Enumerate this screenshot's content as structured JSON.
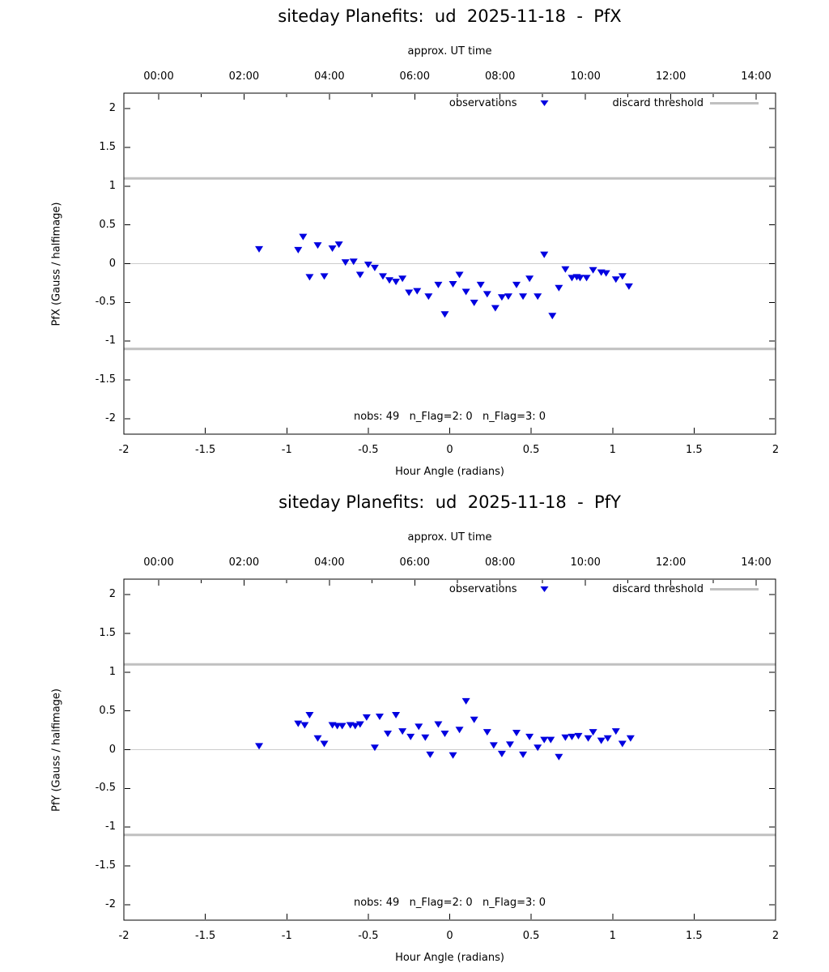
{
  "colors": {
    "marker_blue": "#0000e0",
    "threshold_gray": "#c0c0c0",
    "zero_gray": "#cccccc",
    "axis_black": "#000000",
    "background": "#ffffff"
  },
  "chart_data": [
    {
      "type": "scatter",
      "title": "siteday Planefits:  ud  2025-11-18  -  PfX",
      "x2_axis": {
        "label": "approx. UT time",
        "tick_labels": [
          "00:00",
          "02:00",
          "04:00",
          "06:00",
          "08:00",
          "10:00",
          "12:00",
          "14:00"
        ],
        "tick_ha": [
          -1.7864,
          -1.2626,
          -0.7384,
          -0.2147,
          0.3091,
          0.8333,
          1.357,
          1.8808
        ],
        "minor_step_ha": 0.2618
      },
      "x_axis": {
        "label": "Hour Angle (radians)",
        "range": [
          -2,
          2
        ],
        "ticks": [
          -2,
          -1.5,
          -1,
          -0.5,
          0,
          0.5,
          1,
          1.5,
          2
        ],
        "tick_labels": [
          "-2",
          "-1.5",
          "-1",
          "-0.5",
          "0",
          "0.5",
          "1",
          "1.5",
          "2"
        ]
      },
      "y_axis": {
        "label": "PfX (Gauss / halfimage)",
        "range": [
          -2.2,
          2.2
        ],
        "ticks": [
          -2,
          -1.5,
          -1,
          -0.5,
          0,
          0.5,
          1,
          1.5,
          2
        ],
        "tick_labels": [
          "-2",
          "-1.5",
          "-1",
          "-0.5",
          "0",
          "0.5",
          "1",
          "1.5",
          "2"
        ]
      },
      "legend": {
        "observations_label": "observations",
        "threshold_label": "discard threshold"
      },
      "stats_text": "nobs: 49   n_Flag=2: 0   n_Flag=3: 0",
      "discard_threshold_y": [
        1.1,
        -1.1
      ],
      "zero_line_y": 0,
      "series": [
        {
          "name": "observations",
          "marker": "triangle-down",
          "points": [
            [
              -1.17,
              0.19
            ],
            [
              -0.93,
              0.18
            ],
            [
              -0.9,
              0.35
            ],
            [
              -0.86,
              -0.17
            ],
            [
              -0.81,
              0.24
            ],
            [
              -0.77,
              -0.16
            ],
            [
              -0.72,
              0.2
            ],
            [
              -0.68,
              0.25
            ],
            [
              -0.64,
              0.02
            ],
            [
              -0.59,
              0.03
            ],
            [
              -0.55,
              -0.14
            ],
            [
              -0.5,
              -0.01
            ],
            [
              -0.46,
              -0.05
            ],
            [
              -0.41,
              -0.16
            ],
            [
              -0.37,
              -0.21
            ],
            [
              -0.33,
              -0.23
            ],
            [
              -0.29,
              -0.19
            ],
            [
              -0.25,
              -0.37
            ],
            [
              -0.2,
              -0.35
            ],
            [
              -0.13,
              -0.42
            ],
            [
              -0.07,
              -0.27
            ],
            [
              -0.03,
              -0.65
            ],
            [
              0.02,
              -0.26
            ],
            [
              0.06,
              -0.14
            ],
            [
              0.1,
              -0.36
            ],
            [
              0.15,
              -0.5
            ],
            [
              0.19,
              -0.27
            ],
            [
              0.23,
              -0.39
            ],
            [
              0.28,
              -0.57
            ],
            [
              0.32,
              -0.43
            ],
            [
              0.36,
              -0.42
            ],
            [
              0.41,
              -0.27
            ],
            [
              0.45,
              -0.42
            ],
            [
              0.49,
              -0.19
            ],
            [
              0.54,
              -0.42
            ],
            [
              0.58,
              0.12
            ],
            [
              0.63,
              -0.67
            ],
            [
              0.67,
              -0.31
            ],
            [
              0.71,
              -0.07
            ],
            [
              0.75,
              -0.18
            ],
            [
              0.78,
              -0.17
            ],
            [
              0.8,
              -0.18
            ],
            [
              0.84,
              -0.18
            ],
            [
              0.88,
              -0.08
            ],
            [
              0.93,
              -0.11
            ],
            [
              0.96,
              -0.12
            ],
            [
              1.02,
              -0.2
            ],
            [
              1.06,
              -0.16
            ],
            [
              1.1,
              -0.29
            ]
          ]
        }
      ]
    },
    {
      "type": "scatter",
      "title": "siteday Planefits:  ud  2025-11-18  -  PfY",
      "x2_axis": {
        "label": "approx. UT time",
        "tick_labels": [
          "00:00",
          "02:00",
          "04:00",
          "06:00",
          "08:00",
          "10:00",
          "12:00",
          "14:00"
        ],
        "tick_ha": [
          -1.7864,
          -1.2626,
          -0.7384,
          -0.2147,
          0.3091,
          0.8333,
          1.357,
          1.8808
        ],
        "minor_step_ha": 0.2618
      },
      "x_axis": {
        "label": "Hour Angle (radians)",
        "range": [
          -2,
          2
        ],
        "ticks": [
          -2,
          -1.5,
          -1,
          -0.5,
          0,
          0.5,
          1,
          1.5,
          2
        ],
        "tick_labels": [
          "-2",
          "-1.5",
          "-1",
          "-0.5",
          "0",
          "0.5",
          "1",
          "1.5",
          "2"
        ]
      },
      "y_axis": {
        "label": "PfY (Gauss / halfimage)",
        "range": [
          -2.2,
          2.2
        ],
        "ticks": [
          -2,
          -1.5,
          -1,
          -0.5,
          0,
          0.5,
          1,
          1.5,
          2
        ],
        "tick_labels": [
          "-2",
          "-1.5",
          "-1",
          "-0.5",
          "0",
          "0.5",
          "1",
          "1.5",
          "2"
        ]
      },
      "legend": {
        "observations_label": "observations",
        "threshold_label": "discard threshold"
      },
      "stats_text": "nobs: 49   n_Flag=2: 0   n_Flag=3: 0",
      "discard_threshold_y": [
        1.1,
        -1.1
      ],
      "zero_line_y": 0,
      "series": [
        {
          "name": "observations",
          "marker": "triangle-down",
          "points": [
            [
              -1.17,
              0.05
            ],
            [
              -0.93,
              0.34
            ],
            [
              -0.89,
              0.32
            ],
            [
              -0.86,
              0.45
            ],
            [
              -0.81,
              0.15
            ],
            [
              -0.77,
              0.08
            ],
            [
              -0.72,
              0.32
            ],
            [
              -0.69,
              0.31
            ],
            [
              -0.66,
              0.31
            ],
            [
              -0.61,
              0.32
            ],
            [
              -0.58,
              0.31
            ],
            [
              -0.55,
              0.33
            ],
            [
              -0.51,
              0.42
            ],
            [
              -0.46,
              0.03
            ],
            [
              -0.43,
              0.43
            ],
            [
              -0.38,
              0.21
            ],
            [
              -0.33,
              0.45
            ],
            [
              -0.29,
              0.24
            ],
            [
              -0.24,
              0.17
            ],
            [
              -0.19,
              0.3
            ],
            [
              -0.15,
              0.16
            ],
            [
              -0.12,
              -0.06
            ],
            [
              -0.07,
              0.33
            ],
            [
              -0.03,
              0.21
            ],
            [
              0.02,
              -0.07
            ],
            [
              0.06,
              0.26
            ],
            [
              0.1,
              0.63
            ],
            [
              0.15,
              0.39
            ],
            [
              0.23,
              0.23
            ],
            [
              0.27,
              0.06
            ],
            [
              0.32,
              -0.05
            ],
            [
              0.37,
              0.07
            ],
            [
              0.41,
              0.22
            ],
            [
              0.45,
              -0.06
            ],
            [
              0.49,
              0.17
            ],
            [
              0.54,
              0.03
            ],
            [
              0.58,
              0.13
            ],
            [
              0.62,
              0.13
            ],
            [
              0.67,
              -0.09
            ],
            [
              0.71,
              0.16
            ],
            [
              0.75,
              0.17
            ],
            [
              0.79,
              0.18
            ],
            [
              0.85,
              0.15
            ],
            [
              0.88,
              0.23
            ],
            [
              0.93,
              0.12
            ],
            [
              0.97,
              0.15
            ],
            [
              1.02,
              0.24
            ],
            [
              1.06,
              0.08
            ],
            [
              1.11,
              0.15
            ]
          ]
        }
      ]
    }
  ]
}
